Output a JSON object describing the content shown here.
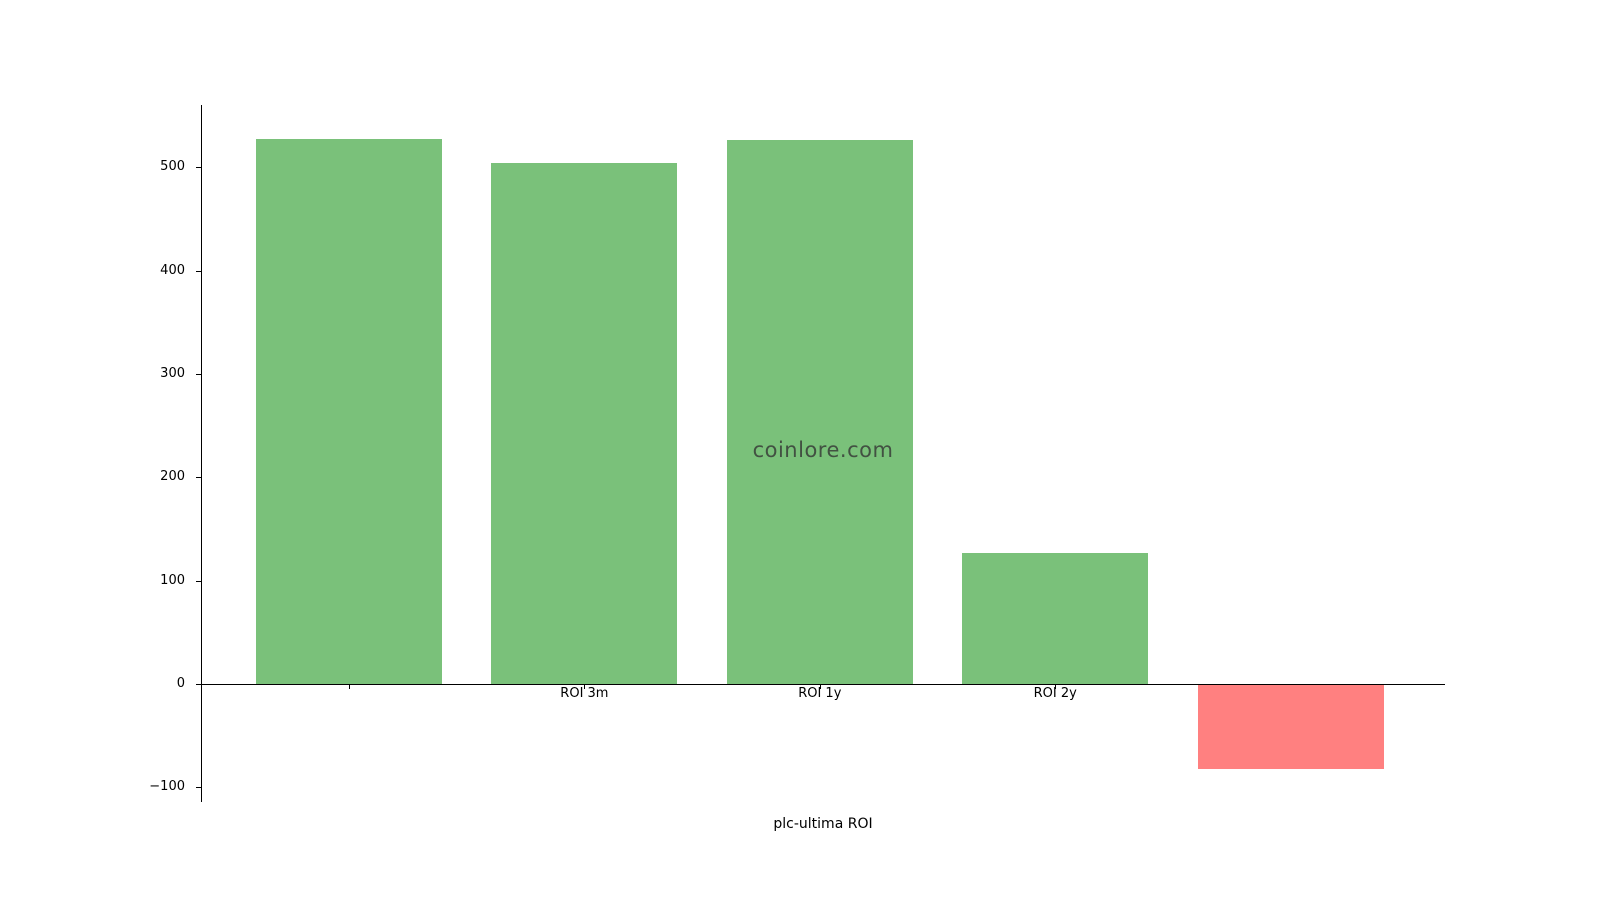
{
  "watermark": "coinlore.com",
  "chart_data": {
    "type": "bar",
    "title": "plc-ultima ROI",
    "categories": [
      "",
      "ROI 3m",
      "ROI 1y",
      "ROI 2y",
      ""
    ],
    "values": [
      527,
      504,
      526,
      127,
      -81
    ],
    "xtick_shown": [
      true,
      true,
      true,
      true,
      false
    ],
    "yticks": [
      500,
      400,
      300,
      200,
      100,
      0,
      -100
    ],
    "ytick_labels": [
      "500",
      "400",
      "300",
      "200",
      "100",
      "0",
      "−100"
    ],
    "ylim": [
      -114,
      560
    ],
    "xlabel": "plc-ultima ROI",
    "ylabel": "",
    "grid": false,
    "legend_position": "none",
    "colors": {
      "positive_bar": "#7ac17a",
      "negative_bar": "#ff8080",
      "axis": "#000000",
      "watermark_text": "rgba(52,52,52,0.8)"
    }
  }
}
